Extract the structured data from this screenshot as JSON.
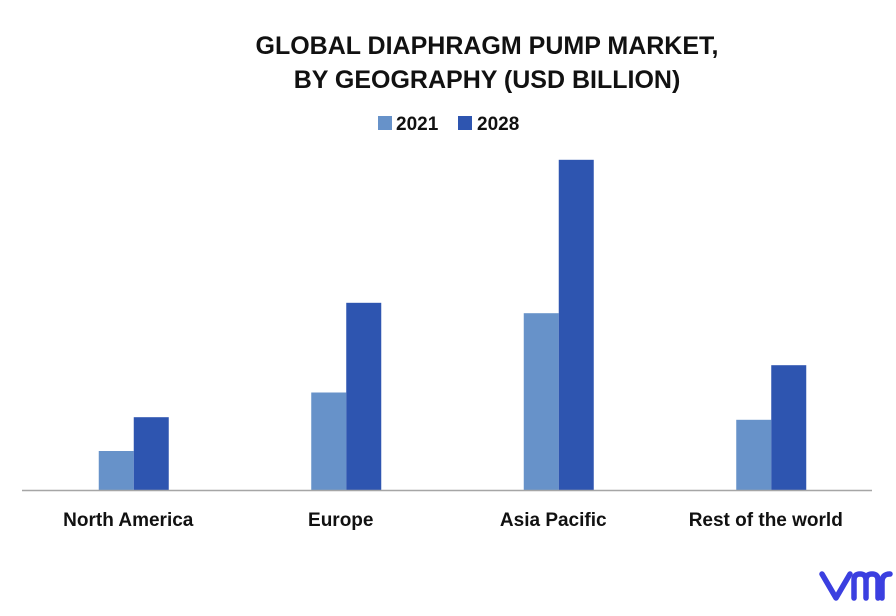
{
  "chart_data": {
    "type": "bar",
    "title": [
      "GLOBAL DIAPHRAGM PUMP MARKET,",
      "BY GEOGRAPHY (USD BILLION)"
    ],
    "categories": [
      "North America",
      "Europe",
      "Asia Pacific",
      "Rest of the world"
    ],
    "series": [
      {
        "name": "2021",
        "values": [
          0.3,
          0.75,
          1.36,
          0.54
        ],
        "color": "#6792c9"
      },
      {
        "name": "2028",
        "values": [
          0.56,
          1.44,
          2.54,
          0.96
        ],
        "color": "#2e55b0"
      }
    ],
    "xlabel": "",
    "ylabel": "",
    "ylim": [
      0,
      2.6
    ],
    "grid": false,
    "legend_position": "top-center",
    "axis_color": "#a6a6a6"
  },
  "branding": {
    "logo_icon": "vmr-logo-icon",
    "logo_color": "#3b3fe0"
  }
}
